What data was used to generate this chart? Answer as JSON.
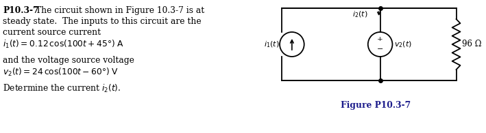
{
  "bg_color": "#ffffff",
  "text_color": "#000000",
  "figure_label_color": "#1a1a8a",
  "title_bold": "P10.3-7",
  "line1": " The circuit shown in Figure 10.3-7 is at",
  "line2": "steady state.  The inputs to this circuit are the",
  "line3": "current source current",
  "line5": "and the voltage source voltage",
  "figure_label": "Figure P10.3-7",
  "resistor_label": "96 Ω"
}
